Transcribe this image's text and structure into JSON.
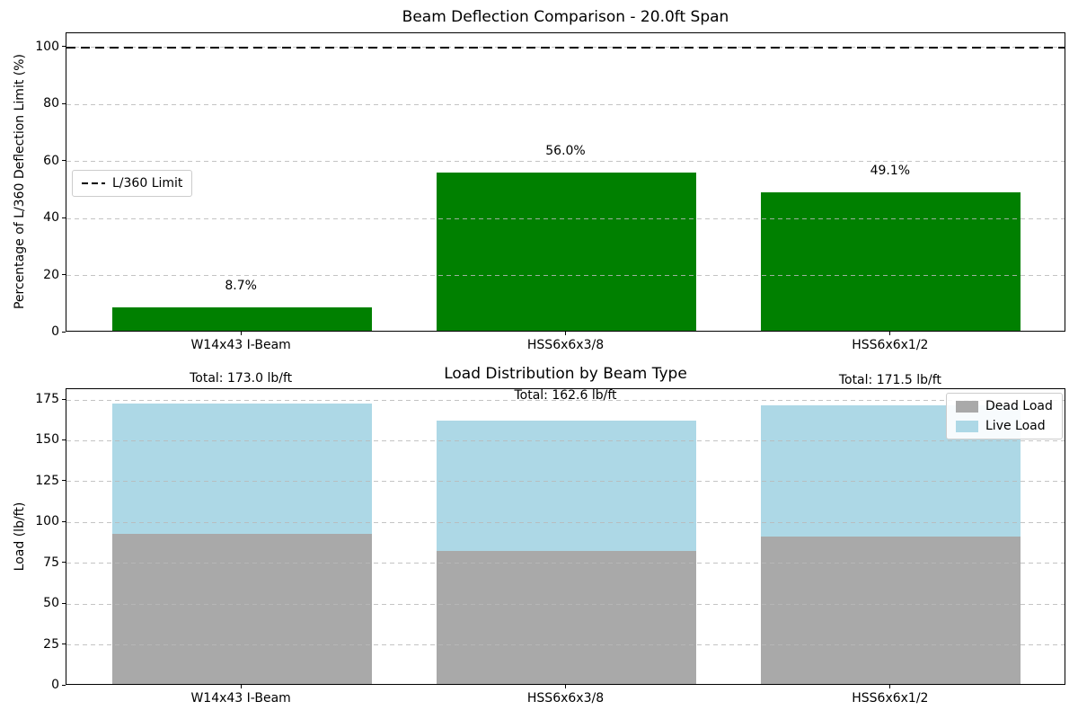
{
  "chart_data": [
    {
      "type": "bar",
      "title": "Beam Deflection Comparison - 20.0ft Span",
      "ylabel": "Percentage of L/360 Deflection Limit (%)",
      "xlabel": "",
      "categories": [
        "W14x43 I-Beam",
        "HSS6x6x3/8",
        "HSS6x6x1/2"
      ],
      "values": [
        8.7,
        56.0,
        49.1
      ],
      "value_labels": [
        "8.7%",
        "56.0%",
        "49.1%"
      ],
      "bar_color": "#008000",
      "ylim": [
        0,
        105
      ],
      "yticks": [
        0,
        20,
        40,
        60,
        80,
        100
      ],
      "grid": "dashed horizontal",
      "ref_line": {
        "value": 100,
        "style": "dashed",
        "color": "#000000",
        "label": "L/360 Limit"
      },
      "legend": {
        "position": "center-left",
        "entries": [
          {
            "label": "L/360 Limit",
            "swatch": "dashed-line",
            "color": "#000000"
          }
        ]
      }
    },
    {
      "type": "stacked-bar",
      "title": "Load Distribution by Beam Type",
      "ylabel": "Load (lb/ft)",
      "xlabel": "",
      "categories": [
        "W14x43 I-Beam",
        "HSS6x6x3/8",
        "HSS6x6x1/2"
      ],
      "series": [
        {
          "name": "Dead Load",
          "color": "#a9a9a9",
          "values": [
            93.0,
            82.6,
            91.5
          ]
        },
        {
          "name": "Live Load",
          "color": "#add8e6",
          "values": [
            80.0,
            80.0,
            80.0
          ]
        }
      ],
      "totals": [
        173.0,
        162.6,
        171.5
      ],
      "total_labels": [
        "Total: 173.0 lb/ft",
        "Total: 162.6 lb/ft",
        "Total: 171.5 lb/ft"
      ],
      "ylim": [
        0,
        181.65
      ],
      "yticks": [
        0,
        25,
        50,
        75,
        100,
        125,
        150,
        175
      ],
      "grid": "dashed horizontal",
      "legend": {
        "position": "top-right",
        "entries": [
          {
            "label": "Dead Load",
            "color": "#a9a9a9"
          },
          {
            "label": "Live Load",
            "color": "#add8e6"
          }
        ]
      }
    }
  ]
}
